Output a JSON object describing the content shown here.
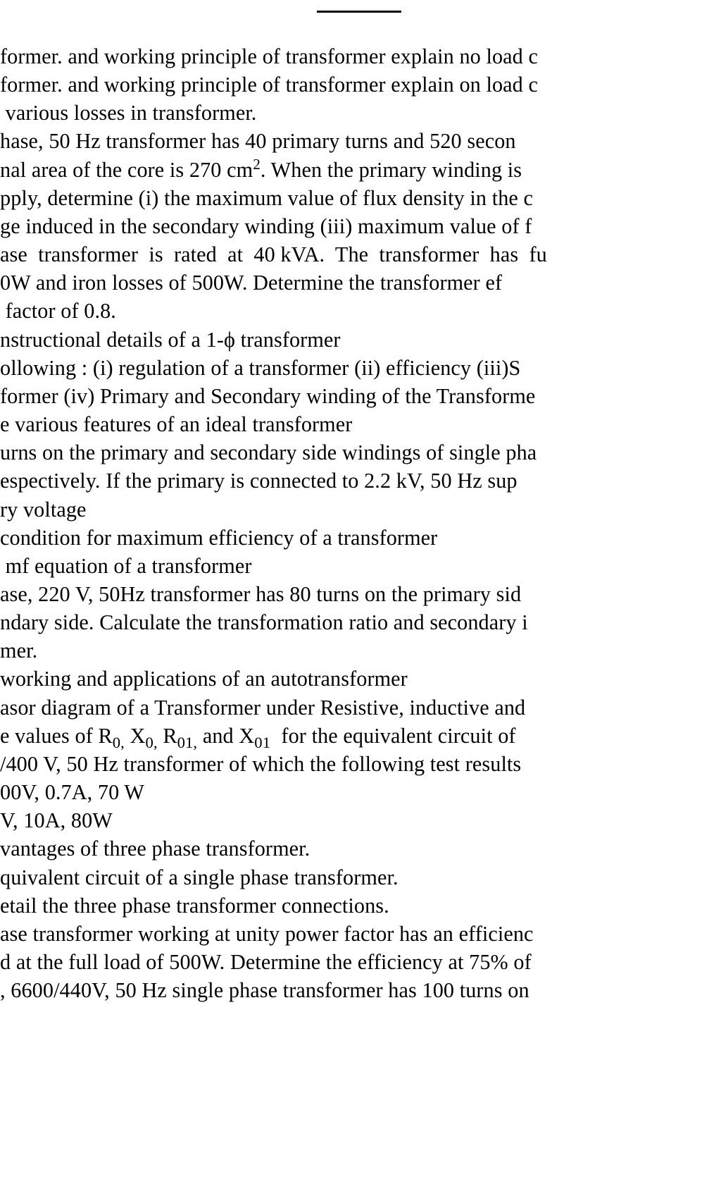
{
  "font_family": "Times New Roman",
  "text_color": "#000000",
  "background_color": "#ffffff",
  "base_fontsize": 30.2,
  "line_height": 1.33,
  "lines": {
    "l01": "former. and working principle of transformer explain no load c",
    "l02": "former. and working principle of transformer explain on load c",
    "l03": " various losses in transformer.",
    "l04": "hase, 50 Hz transformer has 40 primary turns and 520 secon",
    "l05a": "nal area of the core is 270 cm",
    "l05b": ". When the primary winding is ",
    "l06": "pply, determine (i) the maximum value of flux density in the c",
    "l07": "ge induced in the secondary winding (iii) maximum value of f",
    "l08": "ase  transformer  is  rated  at  40 kVA.  The  transformer  has  fu",
    "l09": "0W and iron losses of 500W. Determine the transformer ef",
    "l10": " factor of 0.8.",
    "l11": "nstructional details of a 1-ϕ transformer",
    "l12": "ollowing : (i) regulation of a transformer (ii) efficiency (iii)S",
    "l13": "former (iv) Primary and Secondary winding of the Transforme",
    "l14": "e various features of an ideal transformer",
    "l15": "urns on the primary and secondary side windings of single pha",
    "l16": "espectively. If the primary is connected to 2.2 kV, 50 Hz sup",
    "l17": "ry voltage",
    "l18": "condition for maximum efficiency of a transformer",
    "l19": " mf equation of a transformer",
    "l20": "ase, 220 V, 50Hz transformer has 80 turns on the primary sid",
    "l21": "ndary side. Calculate the transformation ratio and secondary i",
    "l22": "mer.",
    "l23": "working and applications of an autotransformer",
    "l24": "asor diagram of a Transformer under Resistive, inductive and ",
    "l25a": "e values of R",
    "l25b": " X",
    "l25c": " R",
    "l25d": " and X",
    "l25e": "  for the equivalent circuit of ",
    "l26": "/400 V, 50 Hz transformer of which the following test results",
    "l27": "00V, 0.7A, 70 W",
    "l28": "V, 10A, 80W",
    "l29": "vantages of three phase transformer.",
    "l30": "quivalent circuit of a single phase transformer.",
    "l31": "etail the three phase transformer connections.",
    "l32": "ase transformer working at unity power factor has an efficienc",
    "l33": "d at the full load of 500W. Determine the efficiency at 75% of ",
    "l34": ", 6600/440V, 50 Hz single phase transformer has 100 turns on"
  },
  "superscripts": {
    "cm2": "2"
  },
  "subscripts": {
    "s0": "0,",
    "s0b": "0,",
    "s01a": "01,",
    "s01b": "01"
  }
}
